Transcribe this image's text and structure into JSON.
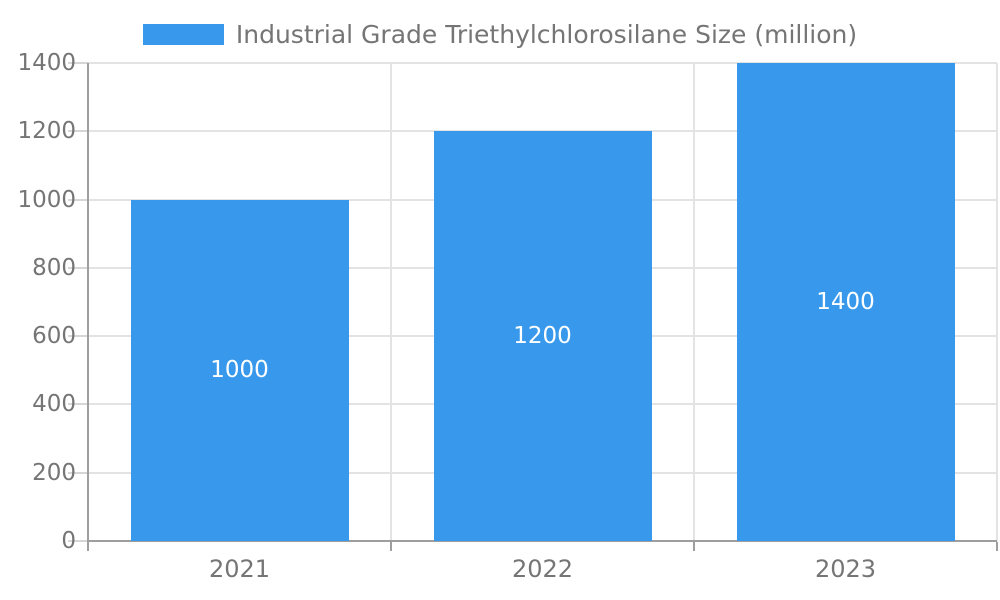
{
  "legend": {
    "label": "Industrial Grade Triethylchlorosilane Size (million)"
  },
  "chart_data": {
    "type": "bar",
    "title": "",
    "categories": [
      "2021",
      "2022",
      "2023"
    ],
    "values": [
      1000,
      1200,
      1400
    ],
    "series": [
      {
        "name": "Industrial Grade Triethylchlorosilane Size (million)",
        "values": [
          1000,
          1200,
          1400
        ]
      }
    ],
    "data_labels": [
      "1000",
      "1200",
      "1400"
    ],
    "xlabel": "",
    "ylabel": "",
    "ylim": [
      0,
      1400
    ],
    "yticks": [
      0,
      200,
      400,
      600,
      800,
      1000,
      1200,
      1400
    ],
    "grid": true,
    "legend_position": "top",
    "colors": {
      "bar": "#3899ec",
      "data_label": "#ffffff",
      "tick_label": "#757575",
      "legend_text": "#757575",
      "grid_line": "#e3e3e3",
      "axis_line": "#9e9e9e",
      "background": "#ffffff"
    }
  }
}
